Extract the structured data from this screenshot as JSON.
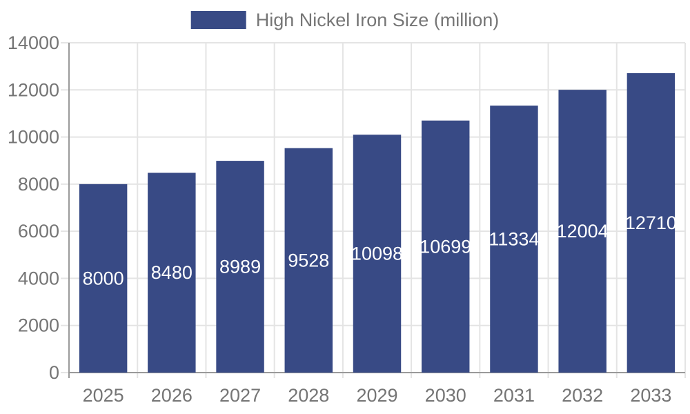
{
  "legend": {
    "label": "High Nickel Iron Size (million)"
  },
  "chart_data": {
    "type": "bar",
    "title": "High Nickel Iron Size (million)",
    "categories": [
      "2025",
      "2026",
      "2027",
      "2028",
      "2029",
      "2030",
      "2031",
      "2032",
      "2033"
    ],
    "values": [
      8000,
      8480,
      8989,
      9528,
      10098,
      10699,
      11334,
      12004,
      12710
    ],
    "series": [
      {
        "name": "High Nickel Iron Size (million)",
        "values": [
          8000,
          8480,
          8989,
          9528,
          10098,
          10699,
          11334,
          12004,
          12710
        ]
      }
    ],
    "xlabel": "",
    "ylabel": "",
    "ylim": [
      0,
      14000
    ],
    "yticks": [
      0,
      2000,
      4000,
      6000,
      8000,
      10000,
      12000,
      14000
    ],
    "grid": true,
    "legend_position": "top",
    "value_labels_position": "inside-middle",
    "colors": {
      "bar": "#384A85",
      "value_label": "#FFFFFF",
      "grid_line": "#E4E4E4",
      "axis_line": "#9A9A9A",
      "tick_label": "#757575",
      "legend_text": "#767676",
      "background": "#FFFFFF"
    }
  }
}
